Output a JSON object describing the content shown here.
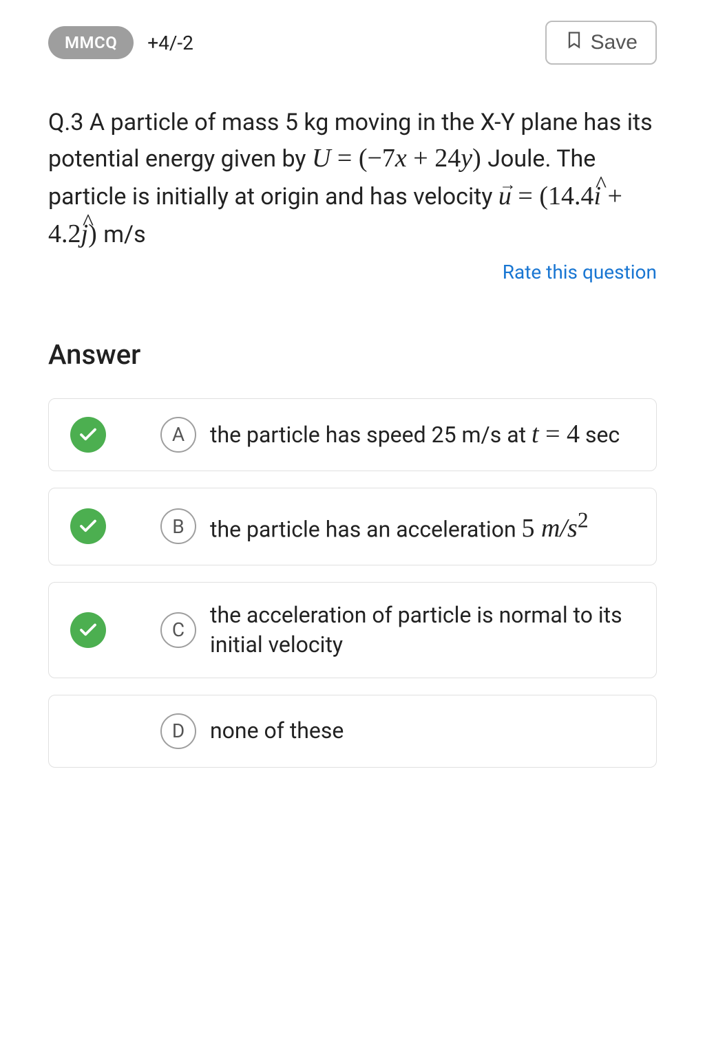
{
  "header": {
    "badge": "MMCQ",
    "score": "+4/-2",
    "save_label": "Save"
  },
  "question": {
    "prefix": "Q.3 A particle of mass 5 kg moving in the X-Y plane has its potential energy given by ",
    "equation1_lhs": "U",
    "equation1_eq": " = ",
    "equation1_rhs": "(−7x + 24y)",
    "mid1": " Joule. The particle is initially at origin and has velocity ",
    "vec_u": "u",
    "equation2_eq": " = ",
    "vel_open": "(14.4",
    "i_hat": "i",
    "vel_plus": " + 4.2",
    "j_hat": "j",
    "vel_close": ")",
    "unit": " m/s"
  },
  "rate_link": "Rate this question",
  "answer_heading": "Answer",
  "options": [
    {
      "letter": "A",
      "correct": true,
      "text_pre": "the particle has speed 25 m/s at ",
      "math_var": "t",
      "math_eq": " = 4",
      "text_post": " sec"
    },
    {
      "letter": "B",
      "correct": true,
      "text_pre": "the particle has an acceleration ",
      "math_val": "5 ",
      "math_unit": "m/s",
      "math_sup": "2",
      "text_post": ""
    },
    {
      "letter": "C",
      "correct": true,
      "text_pre": "the acceleration of particle is normal to its initial velocity",
      "text_post": ""
    },
    {
      "letter": "D",
      "correct": false,
      "text_pre": "none of these",
      "text_post": ""
    }
  ],
  "colors": {
    "badge_bg": "#9e9e9e",
    "correct_green": "#4caf50",
    "link_blue": "#1976d2",
    "border_gray": "#e0e0e0"
  }
}
